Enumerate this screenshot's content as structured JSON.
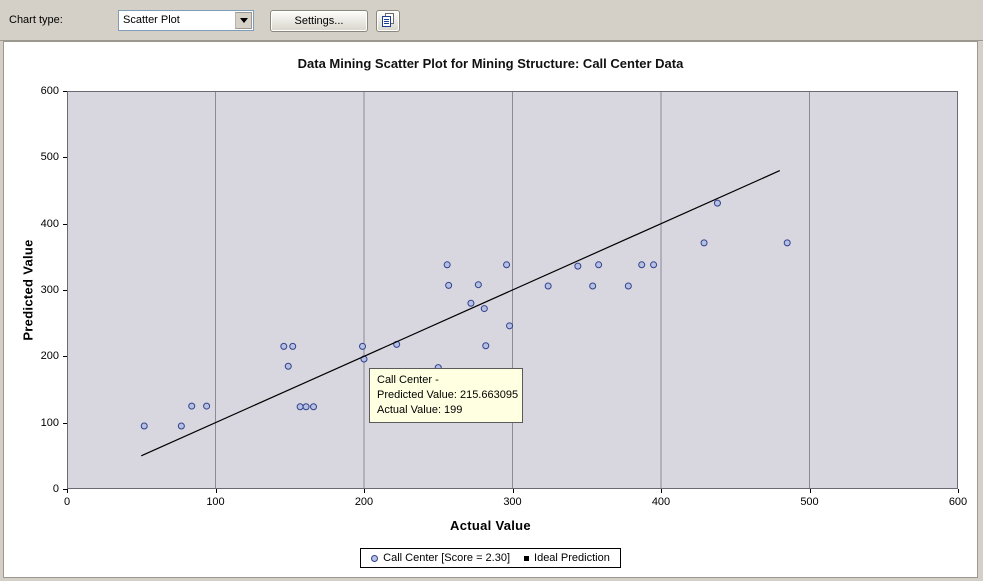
{
  "toolbar": {
    "chart_type_label": "Chart type:",
    "chart_type_value": "Scatter Plot",
    "settings_label": "Settings..."
  },
  "chart_data": {
    "type": "scatter",
    "title": "Data Mining Scatter Plot for Mining Structure: Call Center Data",
    "xlabel": "Actual Value",
    "ylabel": "Predicted Value",
    "xlim": [
      0,
      600
    ],
    "ylim": [
      0,
      600
    ],
    "xticks": [
      0,
      100,
      200,
      300,
      400,
      500,
      600
    ],
    "yticks": [
      0,
      100,
      200,
      300,
      400,
      500,
      600
    ],
    "grid": "vertical",
    "legend_position": "bottom",
    "colors": {
      "plot_bg": "#d8d6de",
      "grid": "#8c8b94",
      "plot_border": "#6a6a72",
      "point_fill": "#b6c0e2",
      "point_stroke": "#31418e",
      "line": "#000000"
    },
    "series": [
      {
        "name": "Call Center [Score = 2.30]",
        "type": "scatter",
        "points": [
          [
            52,
            95
          ],
          [
            77,
            95
          ],
          [
            84,
            125
          ],
          [
            94,
            125
          ],
          [
            146,
            215
          ],
          [
            152,
            215
          ],
          [
            149,
            185
          ],
          [
            157,
            124
          ],
          [
            161,
            124
          ],
          [
            166,
            124
          ],
          [
            199,
            215
          ],
          [
            200,
            196
          ],
          [
            222,
            218
          ],
          [
            250,
            183
          ],
          [
            256,
            338
          ],
          [
            257,
            307
          ],
          [
            272,
            280
          ],
          [
            277,
            308
          ],
          [
            281,
            272
          ],
          [
            282,
            216
          ],
          [
            296,
            338
          ],
          [
            298,
            246
          ],
          [
            324,
            306
          ],
          [
            344,
            336
          ],
          [
            354,
            306
          ],
          [
            358,
            338
          ],
          [
            378,
            306
          ],
          [
            387,
            338
          ],
          [
            395,
            338
          ],
          [
            429,
            371
          ],
          [
            438,
            431
          ],
          [
            485,
            371
          ]
        ]
      },
      {
        "name": "Ideal Prediction",
        "type": "line",
        "points": [
          [
            50,
            50
          ],
          [
            480,
            480
          ]
        ]
      }
    ]
  },
  "tooltip": {
    "lines": [
      "Call Center -",
      "Predicted Value: 215.663095",
      "Actual Value: 199"
    ]
  }
}
